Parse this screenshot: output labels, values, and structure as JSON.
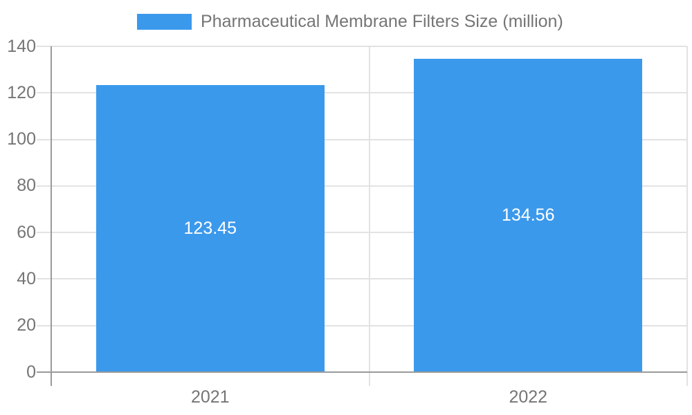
{
  "chart_data": {
    "type": "bar",
    "title": "Pharmaceutical Membrane Filters Size (million)",
    "categories": [
      "2021",
      "2022"
    ],
    "values": [
      123.45,
      134.56
    ],
    "value_labels": [
      "123.45",
      "134.56"
    ],
    "xlabel": "",
    "ylabel": "",
    "ylim": [
      0,
      140
    ],
    "yticks": [
      0,
      20,
      40,
      60,
      80,
      100,
      120,
      140
    ],
    "grid": true,
    "legend_position": "top-center",
    "colors": {
      "bar": "#3b99ec",
      "bar_label_text": "#ffffff",
      "axis_line": "#9a9a9a",
      "gridline": "#e2e2e2",
      "tick_text": "#757575",
      "title_text": "#757575",
      "background": "#ffffff"
    }
  }
}
